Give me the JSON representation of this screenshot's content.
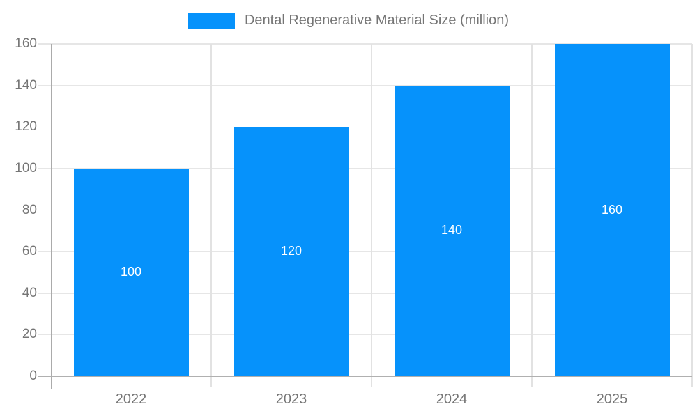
{
  "legend": {
    "label": "Dental Regenerative Material Size (million)"
  },
  "chart_data": {
    "type": "bar",
    "title": "Dental Regenerative Material Size (million)",
    "categories": [
      "2022",
      "2023",
      "2024",
      "2025"
    ],
    "series": [
      {
        "name": "Dental Regenerative Material Size (million)",
        "values": [
          100,
          120,
          140,
          160
        ]
      }
    ],
    "data_labels": [
      "100",
      "120",
      "140",
      "160"
    ],
    "xlabel": "",
    "ylabel": "",
    "ylim": [
      0,
      160
    ],
    "yticks": [
      0,
      20,
      40,
      60,
      80,
      100,
      120,
      140,
      160
    ],
    "grid": true,
    "legend_position": "top",
    "colors": {
      "bar": "#0692fb",
      "data_label": "#ffffff",
      "grid_line": "#e6e6e6",
      "axis_line": "#b0b0b0",
      "tick_text": "#757575",
      "legend_text": "#757575"
    }
  }
}
